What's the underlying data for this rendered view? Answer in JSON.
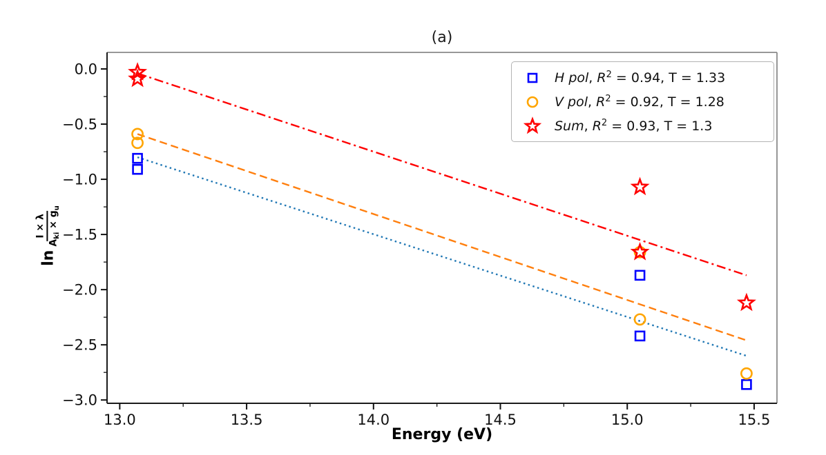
{
  "title": "(a)",
  "colors": {
    "h_marker": "#0000ff",
    "v_marker": "#ffa500",
    "sum_marker": "#ff0000",
    "h_fit": "#1f77b4",
    "v_fit": "#ff7f0e",
    "sum_fit": "#ff0000",
    "spine_dark": "#1a1a1a",
    "spine_light": "#8a8a8a",
    "tick_text": "#111111"
  },
  "axes": {
    "ylabel": {
      "prefix": "ln",
      "numerator": "I × λ",
      "den_base1": "A",
      "den_sub1": "ki",
      "den_op": "×",
      "den_base2": "g",
      "den_sub2": "u"
    }
  },
  "chart_data": {
    "type": "scatter",
    "title": "(a)",
    "xlabel": "Energy (eV)",
    "ylabel": "ln((I × λ) / (A_ki × g_u))",
    "xlim": [
      12.95,
      15.59
    ],
    "ylim": [
      -3.03,
      0.15
    ],
    "grid": false,
    "legend_position": "upper right",
    "x_ticks": {
      "values": [
        13.0,
        13.5,
        14.0,
        14.5,
        15.0,
        15.5
      ],
      "labels": [
        "13.0",
        "13.5",
        "14.0",
        "14.5",
        "15.0",
        "15.5"
      ]
    },
    "y_ticks": {
      "values": [
        0.0,
        -0.5,
        -1.0,
        -1.5,
        -2.0,
        -2.5,
        -3.0
      ],
      "labels": [
        "0.0",
        "−0.5",
        "−1.0",
        "−1.5",
        "−2.0",
        "−2.5",
        "−3.0"
      ]
    },
    "x_minor_ticks": [
      13.25,
      13.75,
      14.25,
      14.75,
      15.25
    ],
    "y_minor_ticks": [
      -0.25,
      -0.75,
      -1.25,
      -1.75,
      -2.25,
      -2.75
    ],
    "series": [
      {
        "name": "H pol",
        "marker": "square",
        "color": "#0000ff",
        "R2": 0.94,
        "T": 1.33,
        "points": [
          [
            13.07,
            -0.81
          ],
          [
            13.07,
            -0.91
          ],
          [
            15.05,
            -1.87
          ],
          [
            15.05,
            -2.42
          ],
          [
            15.47,
            -2.86
          ]
        ]
      },
      {
        "name": "V pol",
        "marker": "circle",
        "color": "#ffa500",
        "R2": 0.92,
        "T": 1.28,
        "points": [
          [
            13.07,
            -0.59
          ],
          [
            13.07,
            -0.67
          ],
          [
            15.05,
            -1.66
          ],
          [
            15.05,
            -2.27
          ],
          [
            15.47,
            -2.76
          ]
        ]
      },
      {
        "name": "Sum",
        "marker": "star",
        "color": "#ff0000",
        "R2": 0.93,
        "T": 1.3,
        "points": [
          [
            13.07,
            -0.03
          ],
          [
            13.07,
            -0.09
          ],
          [
            15.05,
            -1.07
          ],
          [
            15.05,
            -1.66
          ],
          [
            15.47,
            -2.12
          ]
        ]
      }
    ],
    "fit_lines": [
      {
        "name": "h-pol-fit-line",
        "series": "H pol",
        "style": "dotted",
        "color": "#1f77b4",
        "dash": "2.5 4.5",
        "x": [
          13.07,
          15.47
        ],
        "y": [
          -0.8,
          -2.6
        ]
      },
      {
        "name": "v-pol-fit-line",
        "series": "V pol",
        "style": "dashed",
        "color": "#ff7f0e",
        "dash": "11 6",
        "x": [
          13.07,
          15.47
        ],
        "y": [
          -0.59,
          -2.46
        ]
      },
      {
        "name": "sum-fit-line",
        "series": "Sum",
        "style": "dashdot",
        "color": "#ff0000",
        "dash": "13 5 3 5",
        "x": [
          13.07,
          15.47
        ],
        "y": [
          -0.04,
          -1.87
        ]
      }
    ]
  },
  "legend": {
    "items": [
      {
        "marker": "square",
        "color": "#0000ff",
        "parts": [
          {
            "t": "H pol",
            "i": true
          },
          {
            "t": ", "
          },
          {
            "t": "R",
            "i": true
          },
          {
            "t": "2",
            "sup": true
          },
          {
            "t": " = 0.94, T = 1.33"
          }
        ]
      },
      {
        "marker": "circle",
        "color": "#ffa500",
        "parts": [
          {
            "t": "V pol",
            "i": true
          },
          {
            "t": ", "
          },
          {
            "t": "R",
            "i": true
          },
          {
            "t": "2",
            "sup": true
          },
          {
            "t": " = 0.92, T = 1.28"
          }
        ]
      },
      {
        "marker": "star",
        "color": "#ff0000",
        "parts": [
          {
            "t": "Sum",
            "i": true
          },
          {
            "t": ", "
          },
          {
            "t": "R",
            "i": true
          },
          {
            "t": "2",
            "sup": true
          },
          {
            "t": " = 0.93, T = 1.3"
          }
        ]
      }
    ]
  }
}
